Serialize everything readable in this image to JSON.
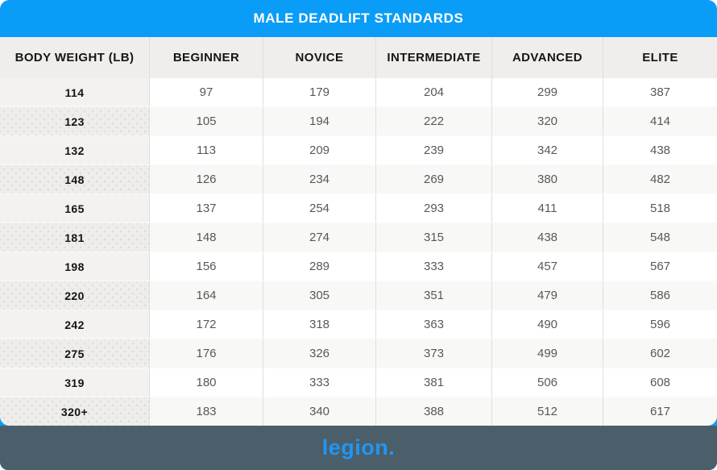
{
  "card": {
    "title": "MALE DEADLIFT STANDARDS",
    "accent_color": "#0A9DF7",
    "footer_color": "#4A5F6A",
    "logo_text": "legion.",
    "logo_color": "#2196F3"
  },
  "chart_data": {
    "type": "table",
    "title": "MALE DEADLIFT STANDARDS",
    "columns": [
      "BODY WEIGHT (LB)",
      "BEGINNER",
      "NOVICE",
      "INTERMEDIATE",
      "ADVANCED",
      "ELITE"
    ],
    "rows": [
      [
        "114",
        97,
        179,
        204,
        299,
        387
      ],
      [
        "123",
        105,
        194,
        222,
        320,
        414
      ],
      [
        "132",
        113,
        209,
        239,
        342,
        438
      ],
      [
        "148",
        126,
        234,
        269,
        380,
        482
      ],
      [
        "165",
        137,
        254,
        293,
        411,
        518
      ],
      [
        "181",
        148,
        274,
        315,
        438,
        548
      ],
      [
        "198",
        156,
        289,
        333,
        457,
        567
      ],
      [
        "220",
        164,
        305,
        351,
        479,
        586
      ],
      [
        "242",
        172,
        318,
        363,
        490,
        596
      ],
      [
        "275",
        176,
        326,
        373,
        499,
        602
      ],
      [
        "319",
        180,
        333,
        381,
        506,
        608
      ],
      [
        "320+",
        183,
        340,
        388,
        512,
        617
      ]
    ],
    "layout": {
      "header_row": true,
      "row_striping": true,
      "first_column_is_row_header": true
    }
  }
}
